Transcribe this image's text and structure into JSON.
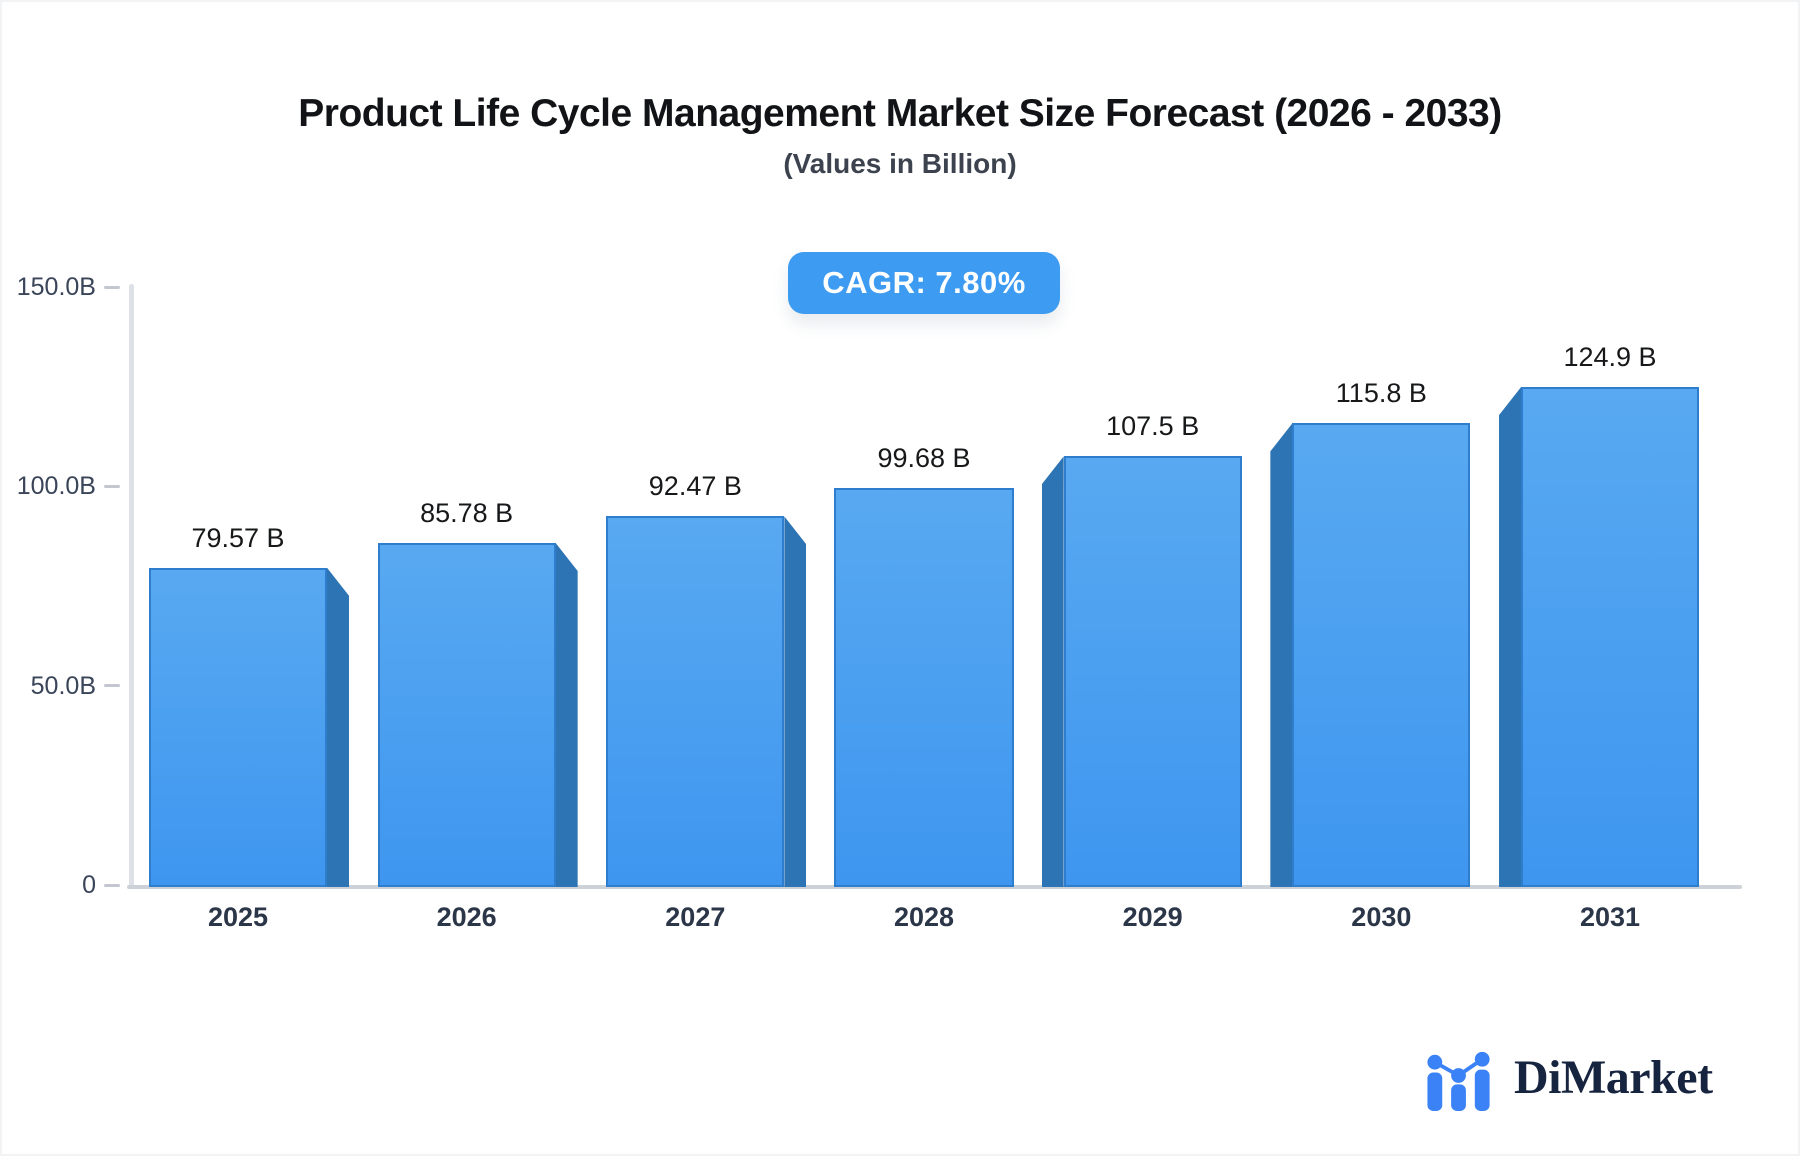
{
  "header": {
    "title": "Product Life Cycle Management Market Size Forecast (2026 - 2033)",
    "subtitle": "(Values in Billion)",
    "cagr_badge": "CAGR: 7.80%"
  },
  "chart_data": {
    "type": "bar",
    "title": "Product Life Cycle Management Market Size Forecast (2026 - 2033)",
    "subtitle": "(Values in Billion)",
    "categories": [
      "2025",
      "2026",
      "2027",
      "2028",
      "2029",
      "2030",
      "2031"
    ],
    "values": [
      79.57,
      85.78,
      92.47,
      99.68,
      107.5,
      115.8,
      124.9
    ],
    "value_labels": [
      "79.57 B",
      "85.78 B",
      "92.47 B",
      "99.68 B",
      "107.5 B",
      "115.8 B",
      "124.9 B"
    ],
    "y_ticks": [
      {
        "label": "150.0B",
        "value": 150
      },
      {
        "label": "100.0B",
        "value": 100
      },
      {
        "label": "50.0B",
        "value": 50
      },
      {
        "label": "0",
        "value": 0
      }
    ],
    "ylim": [
      0,
      150
    ],
    "grid": false,
    "legend": null,
    "annotations": [
      "CAGR: 7.80%"
    ],
    "colors": {
      "bar_face_top": "#58a9f1",
      "bar_face_bottom": "#3e96ef",
      "bar_border": "#2e7ecd",
      "bar_side": "#2d74b5",
      "badge_bg": "#3d9bf2",
      "axis_line": "#dde0e6",
      "xaxis_line": "#cdd2d8",
      "tick_dash": "#c3c8d0",
      "ytick_label": "#3a4559",
      "value_label": "#17181a",
      "category_label": "#2b3648",
      "logo_navy": "#172440",
      "logo_blue": "#3b82f6"
    }
  },
  "branding": {
    "logo_text": "DiMarket"
  }
}
